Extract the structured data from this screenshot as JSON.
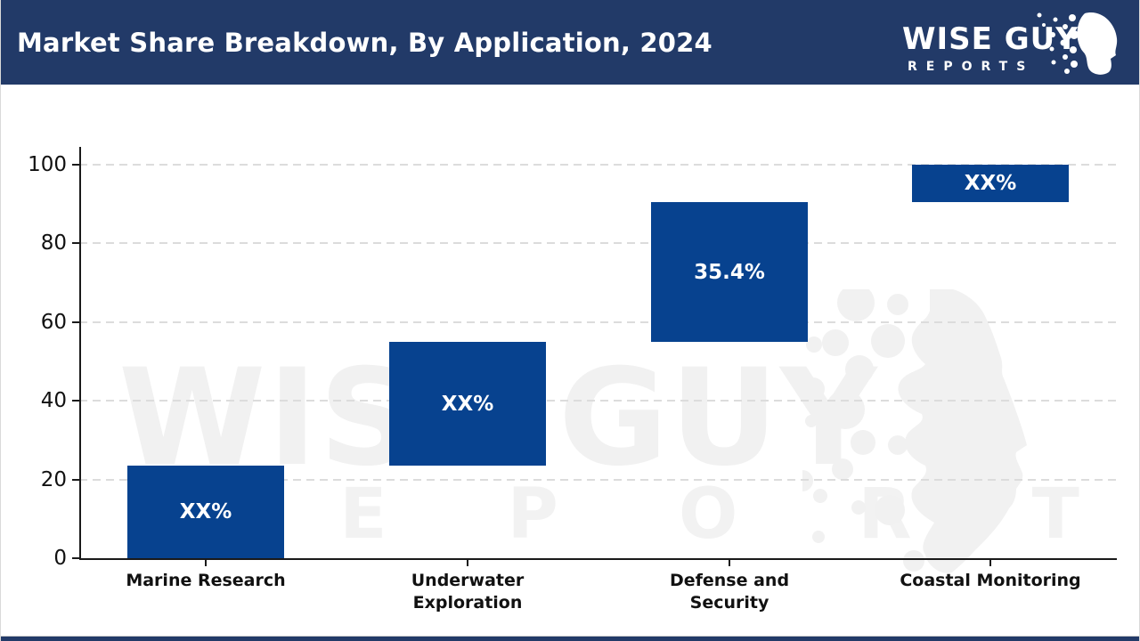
{
  "header": {
    "title": "Market Share Breakdown, By Application, 2024",
    "logo": {
      "line1": "WISE GUY",
      "line2": "REPORTS"
    }
  },
  "watermark": {
    "line1": "WISE GUY",
    "line2": "R E P O R T S"
  },
  "colors": {
    "header_bg": "#223a68",
    "bar": "#07428f",
    "axis": "#1a1a1a",
    "grid": "#dcdcdc",
    "watermark": "#f1f1f1",
    "footer_bar": "#223a68"
  },
  "chart_data": {
    "type": "bar",
    "subtype": "floating-waterfall",
    "title": "Market Share Breakdown, By Application, 2024",
    "categories": [
      "Marine Research",
      "Underwater Exploration",
      "Defense and Security",
      "Coastal Monitoring"
    ],
    "segments": [
      {
        "category": "Marine Research",
        "start": 0,
        "end": 23.4,
        "label": "XX%"
      },
      {
        "category": "Underwater Exploration",
        "start": 23.4,
        "end": 54.9,
        "label": "XX%"
      },
      {
        "category": "Defense and Security",
        "start": 54.9,
        "end": 90.3,
        "label": "35.4%"
      },
      {
        "category": "Coastal Monitoring",
        "start": 90.3,
        "end": 100,
        "label": "XX%"
      }
    ],
    "category_label_lines": [
      [
        "Marine Research"
      ],
      [
        "Underwater",
        "Exploration"
      ],
      [
        "Defense and",
        "Security"
      ],
      [
        "Coastal Monitoring"
      ]
    ],
    "ylim": [
      0,
      100
    ],
    "yticks": [
      0,
      20,
      40,
      60,
      80,
      100
    ],
    "grid": "horizontal-dashed",
    "legend": "none",
    "bar_color": "#07428f",
    "bar_label_color": "#ffffff"
  }
}
